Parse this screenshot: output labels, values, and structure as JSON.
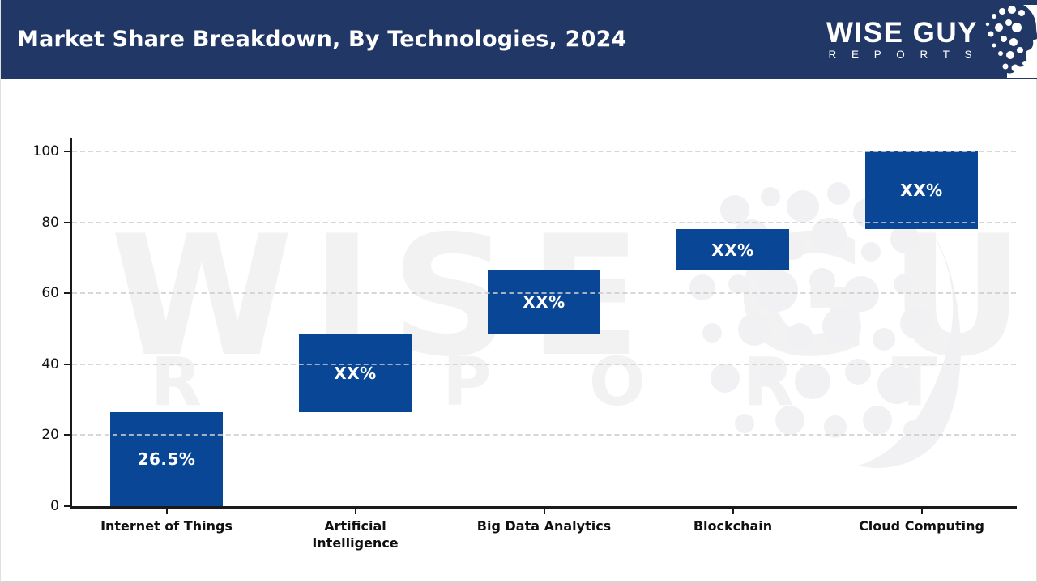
{
  "header": {
    "title": "Market Share Breakdown, By Technologies, 2024",
    "bg_color": "#213765",
    "logo": {
      "line1": "WISE GUY",
      "line2": "R E P O R T S"
    }
  },
  "watermark": {
    "line1": "WISE GUY",
    "line2": "R E P O R T S"
  },
  "chart_data": {
    "type": "bar",
    "subtype": "waterfall",
    "title": "Market Share Breakdown, By Technologies, 2024",
    "categories": [
      "Internet of Things",
      "Artificial\nIntelligence",
      "Big Data Analytics",
      "Blockchain",
      "Cloud Computing"
    ],
    "bars": [
      {
        "category": "Internet of Things",
        "start": 0,
        "end": 26.5,
        "label": "26.5%"
      },
      {
        "category": "Artificial\nIntelligence",
        "start": 26.5,
        "end": 48.5,
        "label": "XX%"
      },
      {
        "category": "Big Data Analytics",
        "start": 48.5,
        "end": 66.5,
        "label": "XX%"
      },
      {
        "category": "Blockchain",
        "start": 66.5,
        "end": 78,
        "label": "XX%"
      },
      {
        "category": "Cloud Computing",
        "start": 78,
        "end": 100,
        "label": "XX%"
      }
    ],
    "xlabel": "",
    "ylabel": "",
    "y_ticks": [
      0,
      20,
      40,
      60,
      80,
      100
    ],
    "ylim": [
      0,
      104
    ],
    "grid": "horizontal-dashed",
    "legend": "none",
    "bar_color": "#0a4696",
    "bar_label_color": "#ffffff",
    "axis_color": "#1a1a1a",
    "gridline_color": "#d8d8d8"
  }
}
